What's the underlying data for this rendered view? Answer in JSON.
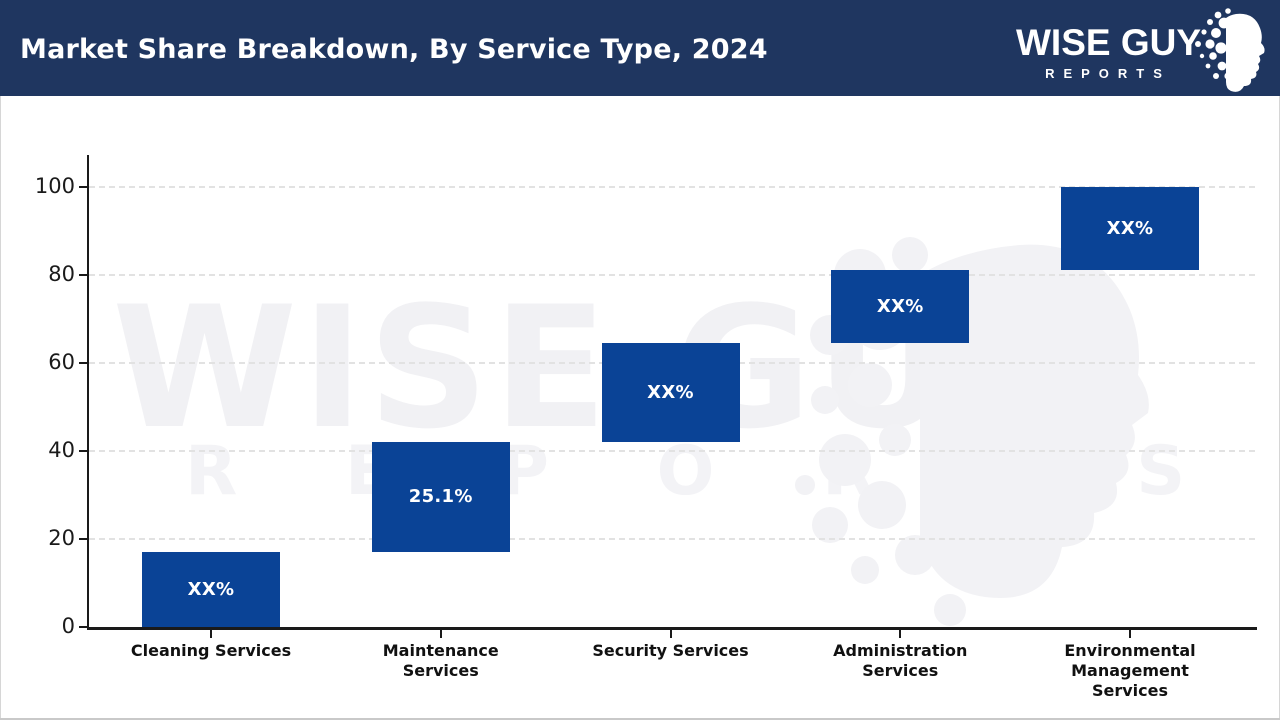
{
  "header": {
    "title": "Market Share Breakdown, By Service Type, 2024",
    "bg_color": "#1F3660",
    "logo": {
      "line1": "WISE GUY",
      "line2": "REPORTS"
    }
  },
  "watermark": {
    "line1": "WISE GUY",
    "line2": "R E P O R T S"
  },
  "chart_data": {
    "type": "bar",
    "subtype": "floating-waterfall-segments",
    "title": "Market Share Breakdown, By Service Type, 2024",
    "xlabel": "",
    "ylabel": "",
    "categories": [
      "Cleaning Services",
      "Maintenance Services",
      "Security Services",
      "Administration Services",
      "Environmental Management Services"
    ],
    "category_label_lines": [
      [
        "Cleaning Services"
      ],
      [
        "Maintenance",
        "Services"
      ],
      [
        "Security Services"
      ],
      [
        "Administration",
        "Services"
      ],
      [
        "Environmental",
        "Management",
        "Services"
      ]
    ],
    "bars": [
      {
        "label": "XX%",
        "start": 0,
        "end": 17
      },
      {
        "label": "25.1%",
        "start": 17,
        "end": 42.1
      },
      {
        "label": "XX%",
        "start": 42.1,
        "end": 64.5
      },
      {
        "label": "XX%",
        "start": 64.5,
        "end": 81.2
      },
      {
        "label": "XX%",
        "start": 81.2,
        "end": 100
      }
    ],
    "y_ticks": [
      0,
      20,
      40,
      60,
      80,
      100
    ],
    "ylim": [
      0,
      107
    ],
    "grid": "horizontal-dashed",
    "legend": "none",
    "bar_color": "#0A4396",
    "bar_label_color": "#FFFFFF",
    "axis_color": "#1a1a1a",
    "gridline_color": "#E2E2E2"
  }
}
